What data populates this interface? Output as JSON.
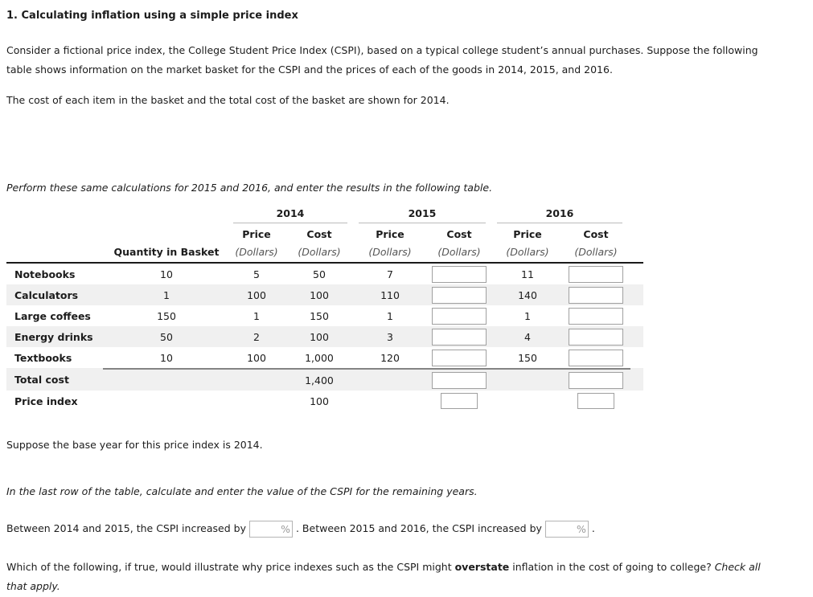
{
  "page": {
    "title": "1. Calculating inflation using a simple price index",
    "intro": "Consider a fictional price index, the College Student Price Index (CSPI), based on a typical college student’s annual purchases. Suppose the following\ntable shows information on the market basket for the CSPI and the prices of each of the goods in 2014, 2015, and 2016.",
    "cost_note": "The cost of each item in the basket and the total cost of the basket are shown for 2014.",
    "perform_note": "Perform these same calculations for 2015 and 2016, and enter the results in the following table.",
    "base_note": "Suppose the base year for this price index is 2014.",
    "last_row_note": "In the last row of the table, calculate and enter the value of the CSPI for the remaining years.",
    "increase_sentence": {
      "part1": "Between 2014 and 2015, the CSPI increased by",
      "percent_symbol": "%",
      "part2": ". Between 2015 and 2016, the CSPI increased by",
      "part3": "."
    },
    "question": {
      "part1": "Which of the following, if true, would illustrate why price indexes such as the CSPI might ",
      "bold_word": "overstate",
      "part2": " inflation in the cost of going to college? ",
      "italic_line1": "Check all",
      "italic_line2": "that apply."
    }
  },
  "table": {
    "years": [
      "2014",
      "2015",
      "2016"
    ],
    "quantity_header": "Quantity in Basket",
    "price_label": "Price",
    "cost_label": "Cost",
    "dollars_label": "(Dollars)",
    "rows": [
      {
        "label": "Notebooks",
        "qty": "10",
        "p14": "5",
        "c14": "50",
        "p15": "7",
        "p16": "11"
      },
      {
        "label": "Calculators",
        "qty": "1",
        "p14": "100",
        "c14": "100",
        "p15": "110",
        "p16": "140"
      },
      {
        "label": "Large coffees",
        "qty": "150",
        "p14": "1",
        "c14": "150",
        "p15": "1",
        "p16": "1"
      },
      {
        "label": "Energy drinks",
        "qty": "50",
        "p14": "2",
        "c14": "100",
        "p15": "3",
        "p16": "4"
      },
      {
        "label": "Textbooks",
        "qty": "10",
        "p14": "100",
        "c14": "1,000",
        "p15": "120",
        "p16": "150"
      }
    ],
    "total_row": {
      "label": "Total cost",
      "c14": "1,400"
    },
    "index_row": {
      "label": "Price index",
      "c14": "100"
    }
  }
}
